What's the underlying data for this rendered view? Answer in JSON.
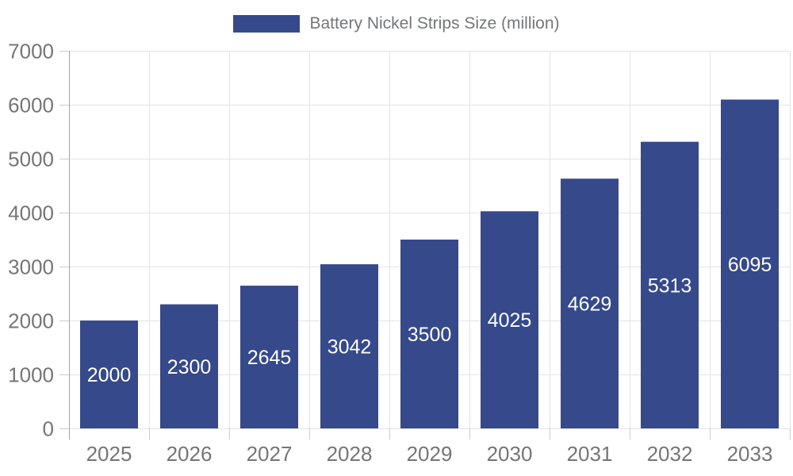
{
  "legend": {
    "label": "Battery Nickel Strips Size (million)"
  },
  "chart_data": {
    "type": "bar",
    "title": "Battery Nickel Strips Size (million)",
    "categories": [
      "2025",
      "2026",
      "2027",
      "2028",
      "2029",
      "2030",
      "2031",
      "2032",
      "2033"
    ],
    "series": [
      {
        "name": "Battery Nickel Strips Size (million)",
        "values": [
          2000,
          2300,
          2645,
          3042,
          3500,
          4025,
          4629,
          5313,
          6095
        ]
      }
    ],
    "xlabel": "",
    "ylabel": "",
    "ylim": [
      0,
      7000
    ],
    "y_ticks": [
      0,
      1000,
      2000,
      3000,
      4000,
      5000,
      6000,
      7000
    ],
    "grid": true,
    "legend_position": "top",
    "value_labels_position": "inside-center",
    "colors": {
      "bar": "#35498b",
      "value_label": "#ffffff",
      "axis_text": "#757575",
      "legend_text": "#747678",
      "gridline": "#e3e3e3",
      "axis_line": "#a3a3a3",
      "tick": "#cccccc",
      "background": "#ffffff"
    }
  }
}
